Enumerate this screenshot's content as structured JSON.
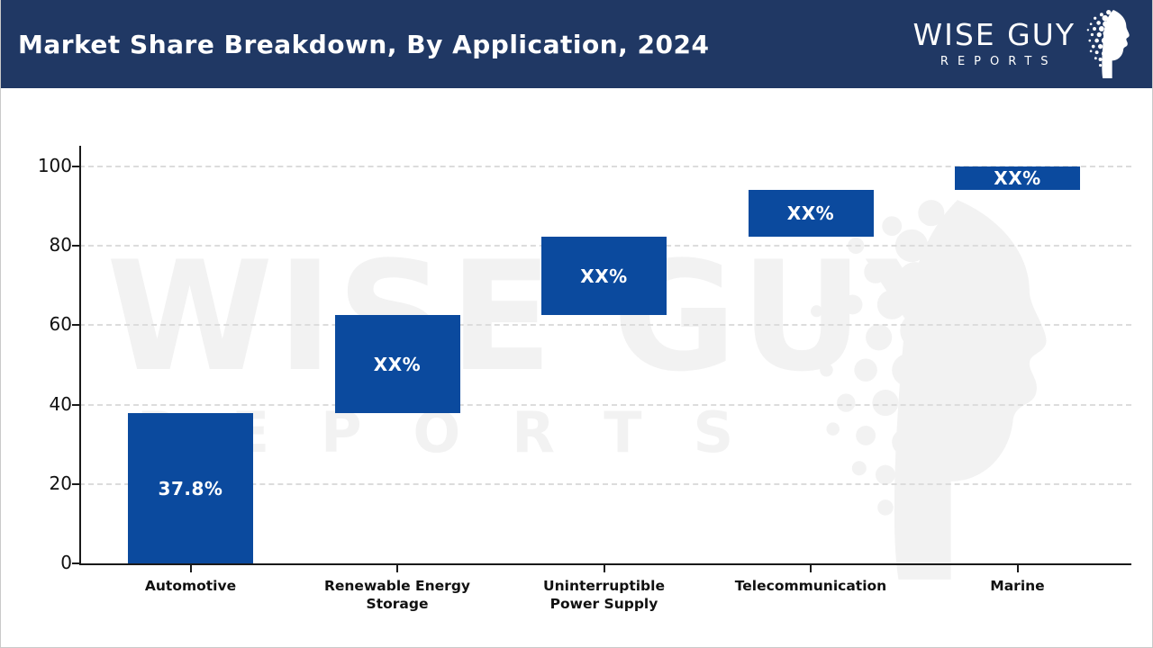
{
  "header": {
    "title": "Market Share Breakdown, By Application, 2024",
    "background_color": "#203864",
    "brand": {
      "name": "WISE GUY",
      "sub": "REPORTS"
    }
  },
  "watermark": {
    "line1": "WISE GUY",
    "line2": "REPORTS"
  },
  "chart_data": {
    "type": "bar",
    "subtype": "waterfall-cumulative",
    "title": "Market Share Breakdown, By Application, 2024",
    "categories": [
      "Automotive",
      "Renewable Energy Storage",
      "Uninterruptible Power Supply",
      "Telecommunication",
      "Marine"
    ],
    "category_lines": [
      [
        "Automotive"
      ],
      [
        "Renewable Energy",
        "Storage"
      ],
      [
        "Uninterruptible",
        "Power Supply"
      ],
      [
        "Telecommunication"
      ],
      [
        "Marine"
      ]
    ],
    "segments": [
      {
        "category": "Automotive",
        "start": 0,
        "end": 37.8,
        "label": "37.8%"
      },
      {
        "category": "Renewable Energy Storage",
        "start": 37.8,
        "end": 62.5,
        "label": "XX%"
      },
      {
        "category": "Uninterruptible Power Supply",
        "start": 62.5,
        "end": 82.3,
        "label": "XX%"
      },
      {
        "category": "Telecommunication",
        "start": 82.3,
        "end": 94.0,
        "label": "XX%"
      },
      {
        "category": "Marine",
        "start": 94.0,
        "end": 100.0,
        "label": "XX%"
      }
    ],
    "y_ticks": [
      0,
      20,
      40,
      60,
      80,
      100
    ],
    "ylim": [
      0,
      105
    ],
    "xlabel": "",
    "ylabel": "",
    "grid": "horizontal-dashed",
    "legend": "none",
    "bar_color": "#0b4a9e",
    "bar_label_color": "#ffffff"
  }
}
